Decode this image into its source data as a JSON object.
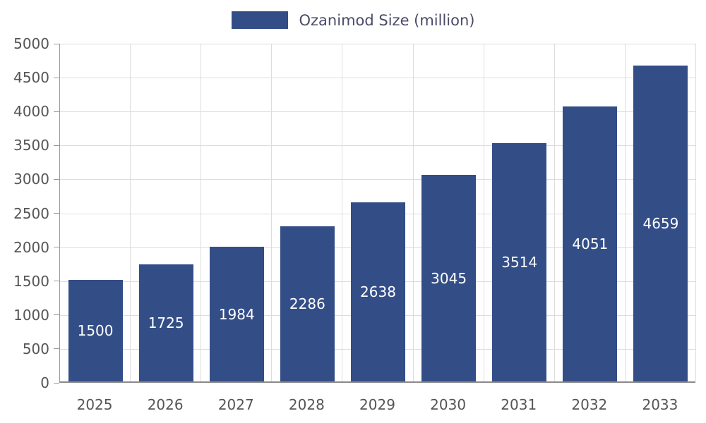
{
  "chart_data": {
    "type": "bar",
    "title": "Ozanimod Size (million)",
    "categories": [
      "2025",
      "2026",
      "2027",
      "2028",
      "2029",
      "2030",
      "2031",
      "2032",
      "2033"
    ],
    "values": [
      1500,
      1725,
      1984,
      2286,
      2638,
      3045,
      3514,
      4051,
      4659
    ],
    "xlabel": "",
    "ylabel": "",
    "ylim": [
      0,
      5000
    ],
    "yticks": [
      0,
      500,
      1000,
      1500,
      2000,
      2500,
      3000,
      3500,
      4000,
      4500,
      5000
    ],
    "grid": true,
    "legend_position": "top",
    "value_labels": "inside-center",
    "colors": {
      "bar": "#334e87",
      "bar_label": "#ffffff",
      "axis_text": "#555555",
      "legend_text": "#4a4a6a",
      "gridline": "#dddddd",
      "axis_line": "#999999",
      "background": "#ffffff"
    }
  }
}
